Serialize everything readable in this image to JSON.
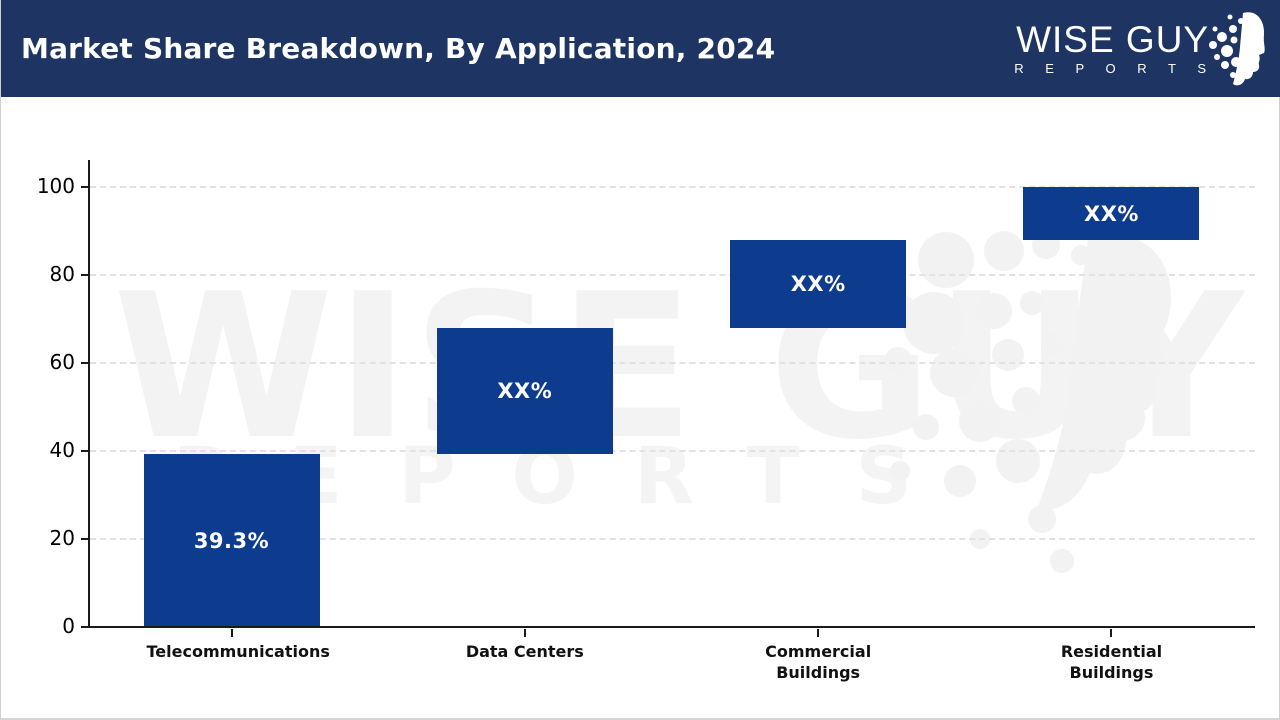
{
  "header": {
    "title": "Market Share Breakdown, By Application, 2024",
    "brand": {
      "line1": "WISE GUY",
      "line2": "R E P O R T S"
    }
  },
  "watermark": {
    "line1": "WISE GUY",
    "line2": "REPORTS"
  },
  "colors": {
    "header_bg": "#1e3563",
    "bar_fill": "#0d3b8e",
    "grid_line": "#e2e2e2",
    "axis": "#1a1a1a",
    "bar_label_text": "#ffffff",
    "watermark": "#f3f3f3"
  },
  "chart_data": {
    "type": "bar",
    "subtype": "waterfall",
    "title": "Market Share Breakdown, By Application, 2024",
    "categories": [
      "Telecommunications",
      "Data Centers",
      "Commercial Buildings",
      "Residential Buildings"
    ],
    "values": [
      39.3,
      28.7,
      19.9,
      12.1
    ],
    "segments": [
      {
        "category": "Telecommunications",
        "start": 0.0,
        "end": 39.3,
        "label": "39.3%"
      },
      {
        "category": "Data Centers",
        "start": 39.3,
        "end": 68.0,
        "label": "XX%"
      },
      {
        "category": "Commercial Buildings",
        "start": 68.0,
        "end": 87.9,
        "label": "XX%"
      },
      {
        "category": "Residential Buildings",
        "start": 87.9,
        "end": 100.0,
        "label": "XX%"
      }
    ],
    "value_labels": [
      "39.3%",
      "XX%",
      "XX%",
      "XX%"
    ],
    "xlabel": "",
    "ylabel": "",
    "yticks": [
      0,
      20,
      40,
      60,
      80,
      100
    ],
    "ylim": [
      0,
      106
    ],
    "grid": "horizontal-dashed",
    "legend": "none"
  }
}
